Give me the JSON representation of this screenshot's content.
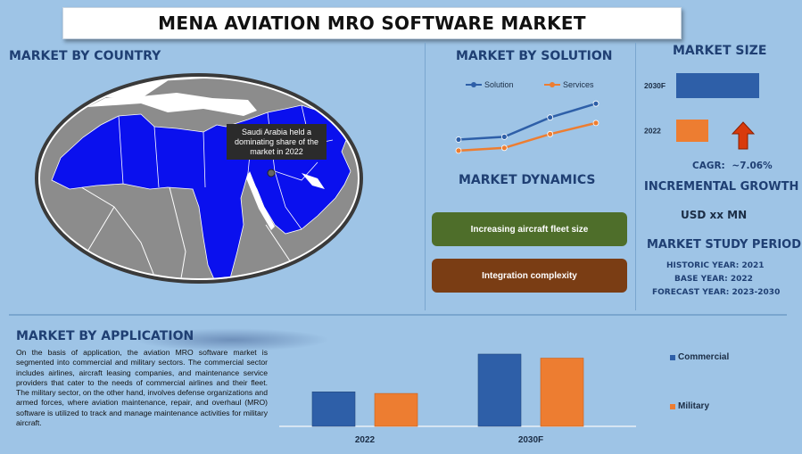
{
  "title": "MENA AVIATION MRO SOFTWARE MARKET",
  "country": {
    "heading": "MARKET BY COUNTRY",
    "callout": "Saudi Arabia held a dominating share of the market in 2022"
  },
  "solution": {
    "heading": "MARKET BY SOLUTION",
    "chart_data": {
      "type": "line",
      "x": [
        1,
        2,
        3,
        4
      ],
      "series": [
        {
          "name": "Solution",
          "values": [
            1.0,
            1.2,
            2.6,
            3.6
          ],
          "color": "#2e5fa8"
        },
        {
          "name": "Services",
          "values": [
            0.2,
            0.4,
            1.4,
            2.2
          ],
          "color": "#ed7d31"
        }
      ],
      "ylim": [
        0,
        4
      ]
    }
  },
  "dynamics": {
    "heading": "MARKET DYNAMICS",
    "driver": "Increasing aircraft fleet size",
    "challenge": "Integration complexity",
    "driver_color": "#4e6e2a",
    "challenge_color": "#7a3d14"
  },
  "size": {
    "heading": "MARKET SIZE",
    "chart_data": {
      "type": "bar",
      "categories": [
        "2030F",
        "2022"
      ],
      "values": [
        93,
        36
      ],
      "colors": [
        "#2e5fa8",
        "#ed7d31"
      ]
    },
    "cagr_label": "CAGR:",
    "cagr_value": "~7.06%",
    "arrow_icon": "arrow-up-icon"
  },
  "incremental": {
    "heading": "INCREMENTAL GROWTH",
    "value": "USD xx MN"
  },
  "study": {
    "heading": "MARKET STUDY PERIOD",
    "historic": "HISTORIC YEAR: 2021",
    "base": "BASE YEAR: 2022",
    "forecast": "FORECAST YEAR: 2023-2030"
  },
  "application": {
    "heading": "MARKET BY APPLICATION",
    "text": "On the basis of application, the aviation MRO software market is segmented into commercial and military sectors. The commercial sector includes airlines, aircraft leasing companies, and maintenance service providers that cater to the needs of commercial airlines and their fleet. The military sector, on the other hand, involves defense organizations and armed forces, where aviation maintenance, repair, and overhaul (MRO) software is utilized to track and manage maintenance activities for military aircraft.",
    "chart_data": {
      "type": "bar",
      "categories": [
        "2022",
        "2030F"
      ],
      "series": [
        {
          "name": "Commercial",
          "values": [
            43,
            90
          ],
          "color": "#2e5fa8"
        },
        {
          "name": "Military",
          "values": [
            41,
            85
          ],
          "color": "#ed7d31"
        }
      ],
      "ylim": [
        0,
        100
      ]
    }
  }
}
